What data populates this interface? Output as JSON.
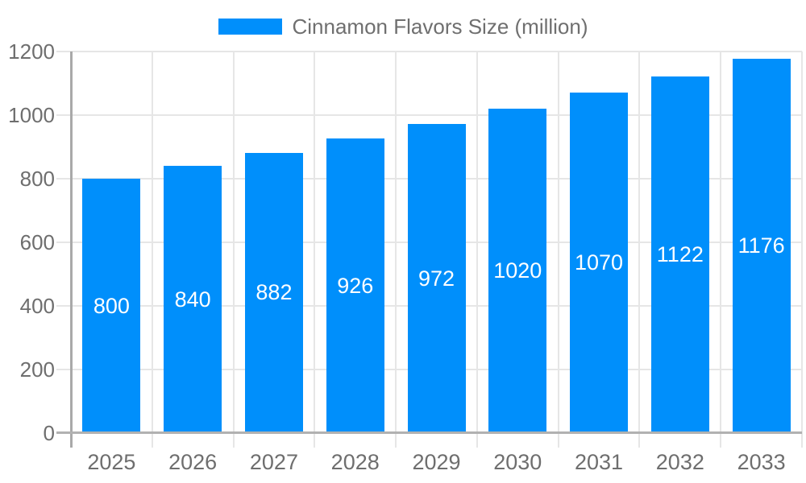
{
  "chart_data": {
    "type": "bar",
    "title": "",
    "legend": {
      "label": "Cinnamon Flavors Size (million)",
      "position": "top",
      "marker_color": "#008FFB"
    },
    "categories": [
      "2025",
      "2026",
      "2027",
      "2028",
      "2029",
      "2030",
      "2031",
      "2032",
      "2033"
    ],
    "series": [
      {
        "name": "Cinnamon Flavors Size (million)",
        "values": [
          800,
          840,
          882,
          926,
          972,
          1020,
          1070,
          1122,
          1176
        ]
      }
    ],
    "data_labels": [
      "800",
      "840",
      "882",
      "926",
      "972",
      "1020",
      "1070",
      "1122",
      "1176"
    ],
    "xlabel": "",
    "ylabel": "",
    "ylim": [
      0,
      1200
    ],
    "yticks": [
      0,
      200,
      400,
      600,
      800,
      1000,
      1200
    ],
    "grid": true,
    "colors": {
      "bar": "#008FFB",
      "data_label": "#ffffff",
      "axis_label": "#6e6e6e",
      "grid_line": "#e6e6e6",
      "axis_line": "#a9a9a9"
    }
  }
}
